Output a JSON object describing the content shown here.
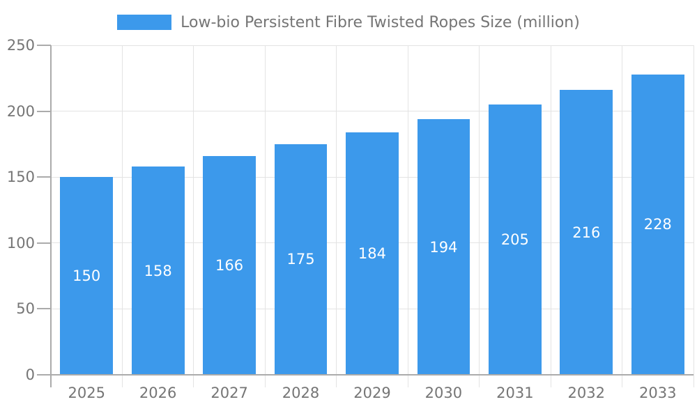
{
  "chart_data": {
    "type": "bar",
    "title": "Low-bio Persistent Fibre Twisted Ropes Size (million)",
    "legend_label": "Low-bio Persistent Fibre Twisted Ropes Size (million)",
    "legend_position": "top",
    "categories": [
      "2025",
      "2026",
      "2027",
      "2028",
      "2029",
      "2030",
      "2031",
      "2032",
      "2033"
    ],
    "values": [
      150,
      158,
      166,
      175,
      184,
      194,
      205,
      216,
      228
    ],
    "xlabel": "",
    "ylabel": "",
    "ylim": [
      0,
      250
    ],
    "yticks": [
      0,
      50,
      100,
      150,
      200,
      250
    ],
    "grid": true,
    "bar_label_position": "inside-center",
    "colors": {
      "bar": "#3c99eb",
      "grid_line": "#e3e3e3",
      "axis_line": "#ababab",
      "tick_text": "#757575",
      "legend_text": "#757575",
      "bar_value_text": "#ffffff",
      "background": "#ffffff"
    }
  }
}
